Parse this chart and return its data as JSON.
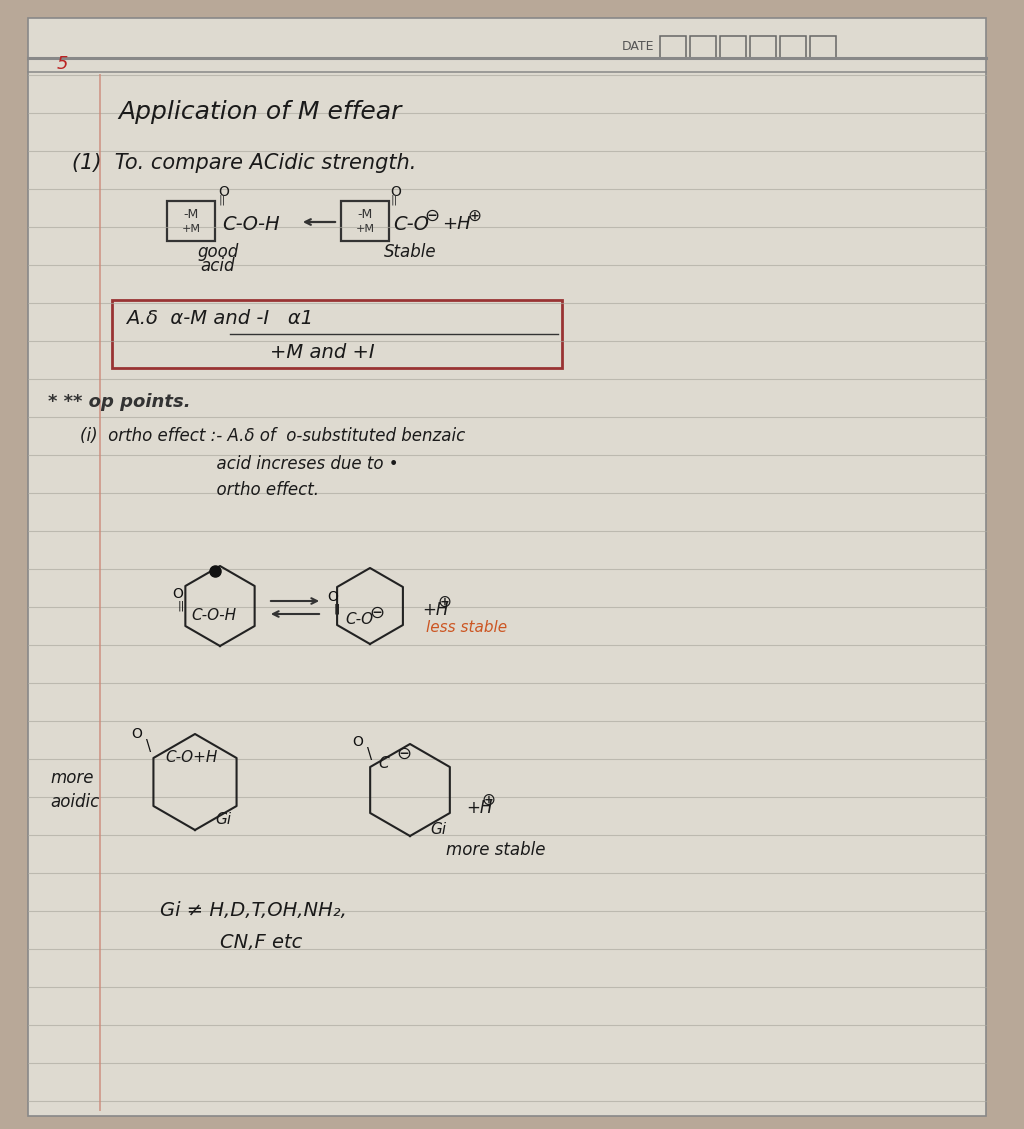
{
  "bg_color": "#b8a898",
  "page_bg": "#dedad0",
  "line_color": "#aaa89e",
  "ink_color": "#1a1a1a",
  "red_margin": "#cc8877",
  "box_color": "#993333",
  "title": "Application of M effear",
  "heading1": "(1)  To. compare ACidic strength.",
  "good_acid": "good\nacid",
  "stable": "Stable",
  "box_line1": "A.δ  α-M and -I   α1",
  "box_line2": "+M and +I",
  "imp": "* ** op points.",
  "ortho1": "(i)  ortho effect :- A.δ of  o-substituted benzaic",
  "ortho2": "                          acid increses due to •",
  "ortho3": "                          ortho effect.",
  "less_stable": "less stable",
  "more_acidic": "more\naoidic",
  "more_stable": "more stable",
  "gi1": "Gi ≠ H,D,T,OH,NH₂,",
  "gi2": "CN,F etc",
  "date_label": "DATE"
}
